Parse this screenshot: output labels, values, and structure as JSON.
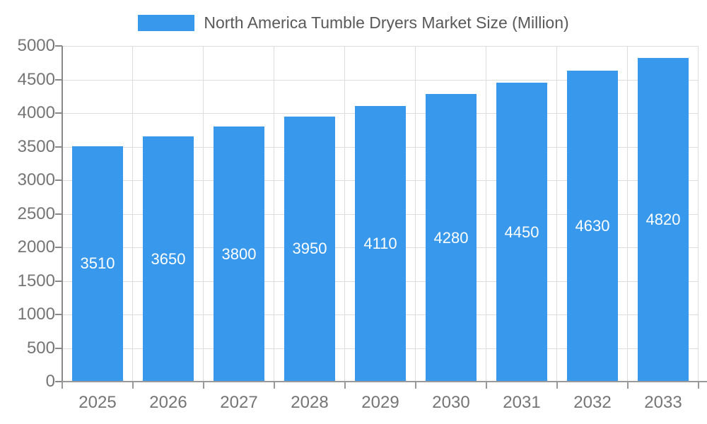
{
  "chart_data": {
    "type": "bar",
    "title": "North America Tumble Dryers Market Size (Million)",
    "categories": [
      "2025",
      "2026",
      "2027",
      "2028",
      "2029",
      "2030",
      "2031",
      "2032",
      "2033"
    ],
    "values": [
      3510,
      3650,
      3800,
      3950,
      4110,
      4280,
      4450,
      4630,
      4820
    ],
    "series_name": "North America Tumble Dryers Market Size (Million)",
    "xlabel": "",
    "ylabel": "",
    "ylim": [
      0,
      5000
    ],
    "ytick_step": 500,
    "ytick_labels": [
      "0",
      "500",
      "1000",
      "1500",
      "2000",
      "2500",
      "3000",
      "3500",
      "4000",
      "4500",
      "5000"
    ],
    "grid": true,
    "legend_position": "top-center",
    "colors": {
      "bar_fill": "#3898EC",
      "gridline": "#dddddd",
      "axis_line": "#888888",
      "tick_label": "#757575",
      "legend_text": "#595959",
      "value_label": "#ffffff",
      "background": "#ffffff"
    },
    "value_label_position": "middle-of-bar"
  }
}
